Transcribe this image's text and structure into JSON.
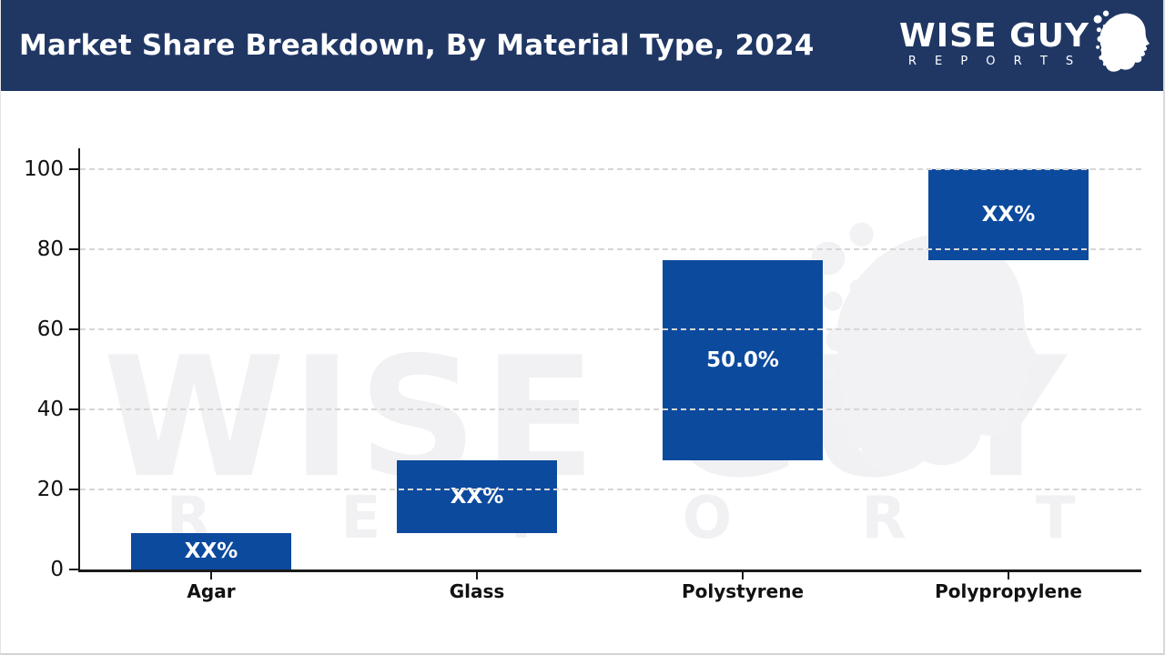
{
  "header": {
    "title": "Market Share Breakdown, By Material Type, 2024",
    "bg_color": "#203764",
    "brand": {
      "name": "WISE GUY",
      "tagline": "R E P O R T S"
    }
  },
  "watermark": {
    "line1": "WISE GUY",
    "line2": "R E P O R T S"
  },
  "chart_data": {
    "type": "bar",
    "subtype": "waterfall",
    "title": "Market Share Breakdown, By Material Type, 2024",
    "xlabel": "",
    "ylabel": "",
    "categories": [
      "Agar",
      "Glass",
      "Polystyrene",
      "Polypropylene"
    ],
    "segments": [
      {
        "category": "Agar",
        "start": 0,
        "end": 9,
        "value": 9,
        "label": "XX%"
      },
      {
        "category": "Glass",
        "start": 9,
        "end": 27.3,
        "value": 18.3,
        "label": "XX%"
      },
      {
        "category": "Polystyrene",
        "start": 27.3,
        "end": 77.3,
        "value": 50,
        "label": "50.0%"
      },
      {
        "category": "Polypropylene",
        "start": 77.3,
        "end": 100,
        "value": 22.7,
        "label": "XX%"
      }
    ],
    "yticks": [
      0,
      20,
      40,
      60,
      80,
      100
    ],
    "ytick_labels": [
      "0",
      "20",
      "40",
      "60",
      "80",
      "100"
    ],
    "ylim": [
      0,
      105
    ],
    "grid": "horizontal-dashed-over-bars",
    "legend": "none",
    "bar_color": "#0c4a9e",
    "bar_label_color": "#ffffff",
    "grid_color": "#d6d6d6",
    "axis_color": "#1a1a1a"
  }
}
